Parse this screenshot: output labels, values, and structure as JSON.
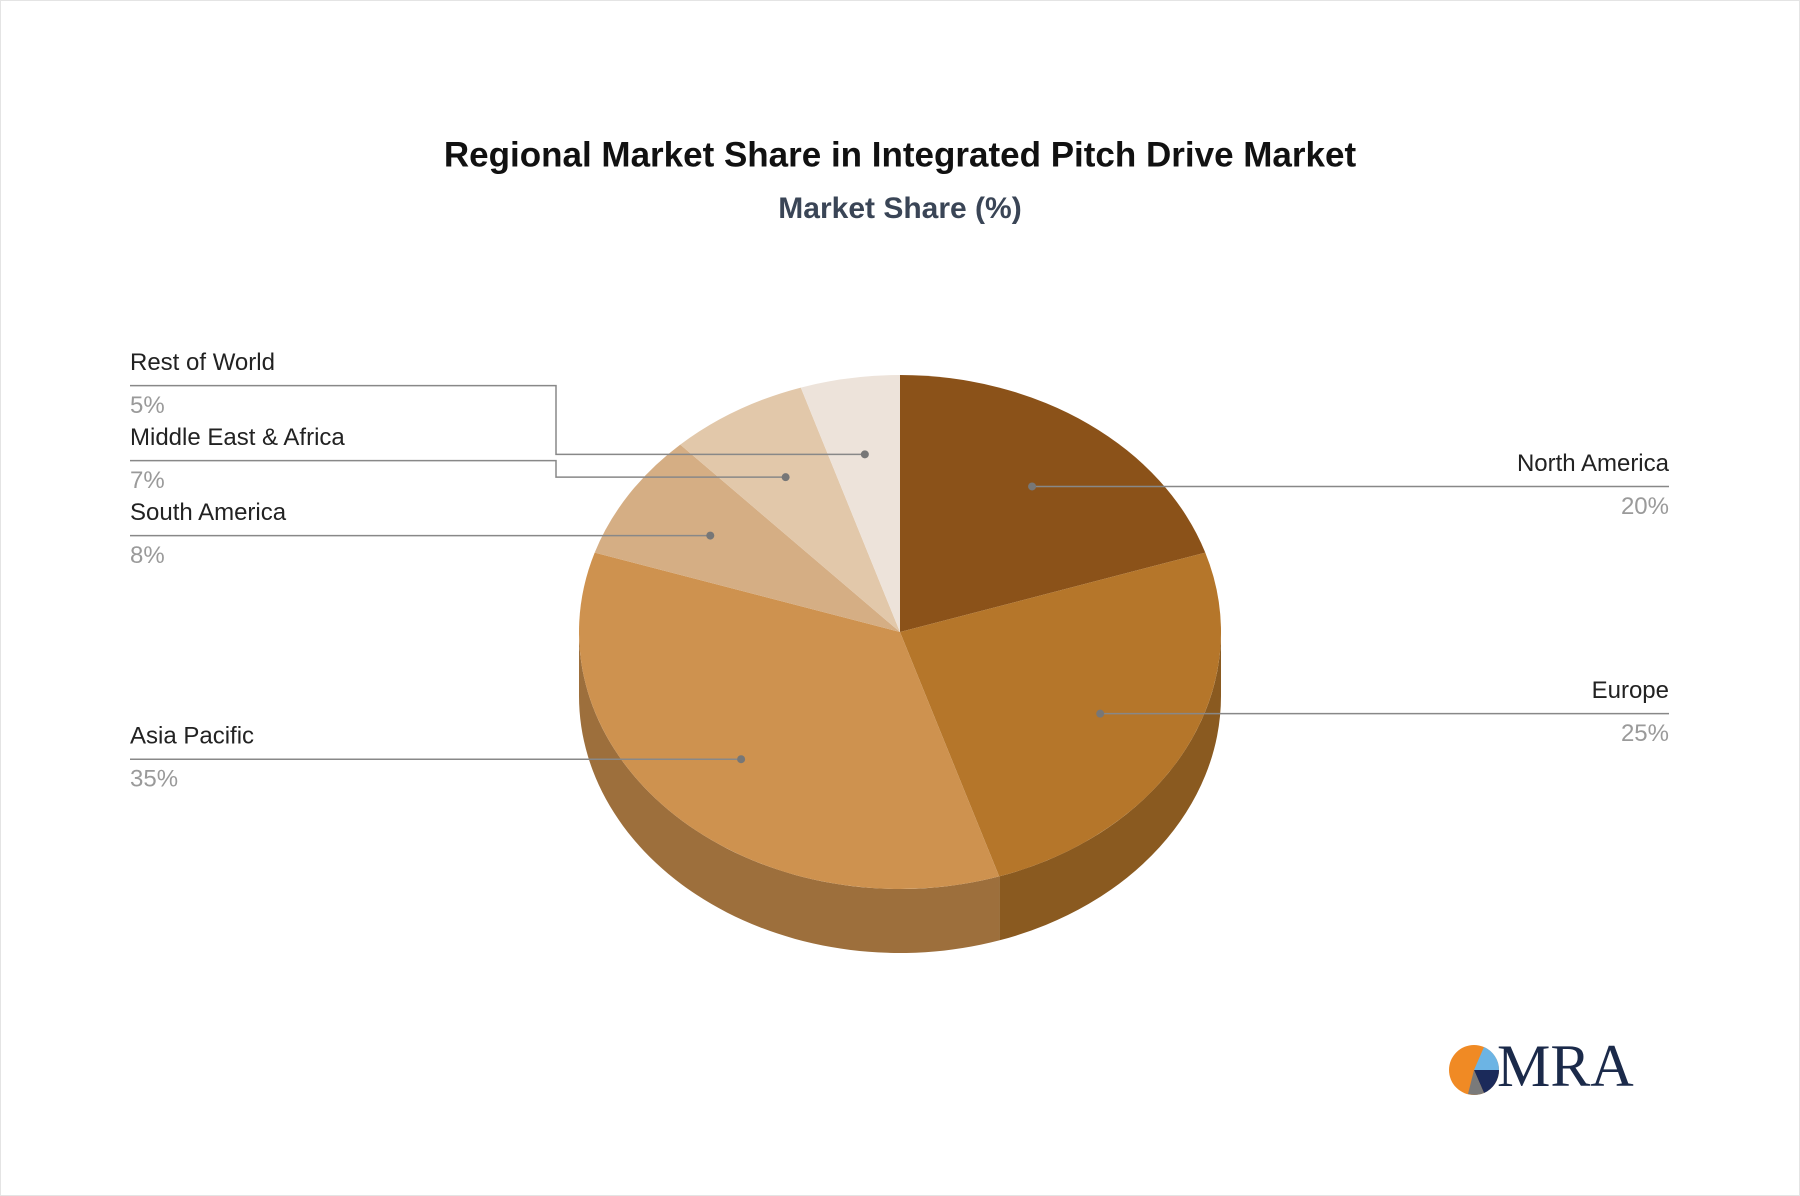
{
  "chart_data": {
    "type": "pie",
    "title": "Regional Market Share in Integrated Pitch Drive Market",
    "subtitle": "Market Share (%)",
    "categories": [
      "North America",
      "Europe",
      "Asia Pacific",
      "South America",
      "Middle East & Africa",
      "Rest of World"
    ],
    "values": [
      20,
      25,
      35,
      8,
      7,
      5
    ],
    "value_labels": [
      "20%",
      "25%",
      "35%",
      "8%",
      "7%",
      "5%"
    ],
    "colors": [
      "#8b5219",
      "#b5762a",
      "#ce924f",
      "#d5ae84",
      "#e2c8aa",
      "#ede3da"
    ]
  },
  "logo": {
    "text": "MRA"
  }
}
